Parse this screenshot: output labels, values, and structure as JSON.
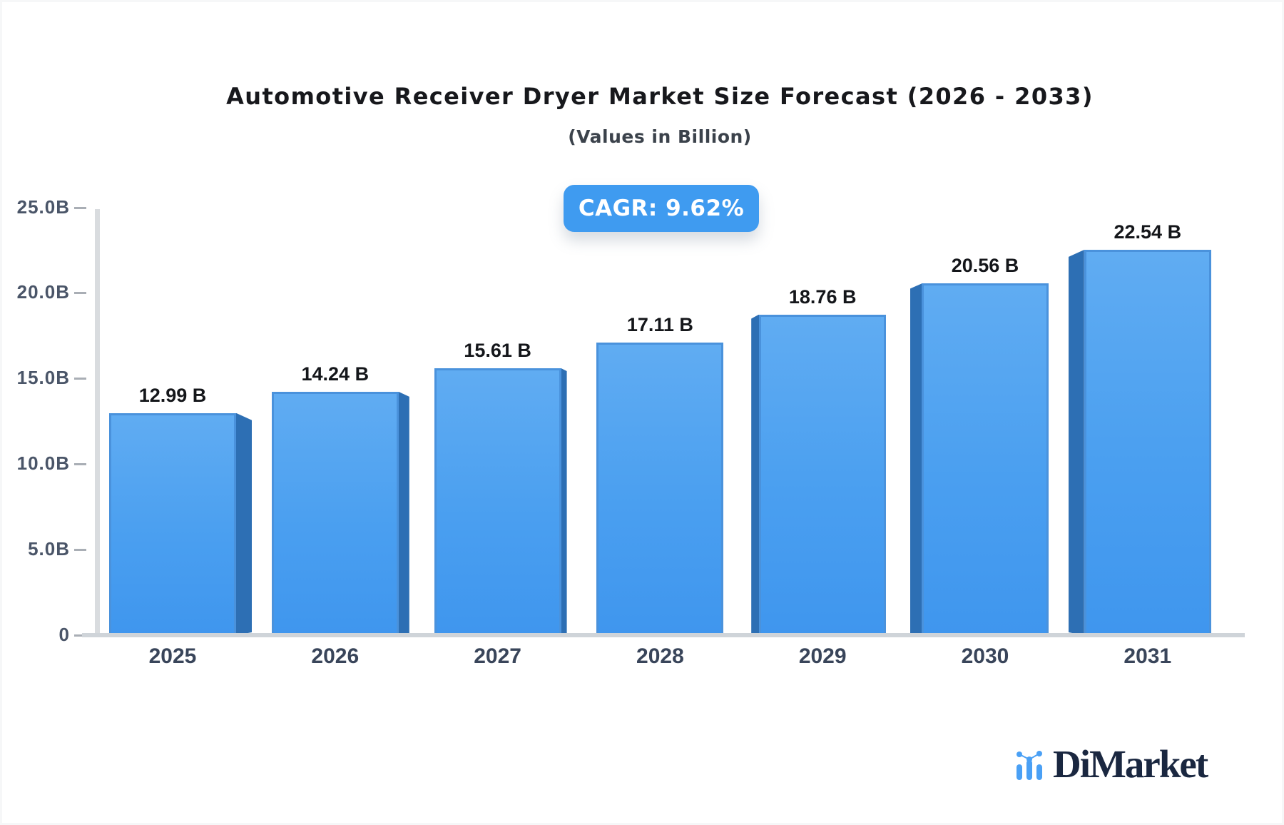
{
  "header": {
    "title": "Automotive Receiver Dryer Market Size Forecast (2026 - 2033)",
    "subtitle": "(Values in Billion)",
    "cagr_badge": "CAGR: 9.62%"
  },
  "chart_data": {
    "type": "bar",
    "categories": [
      "2025",
      "2026",
      "2027",
      "2028",
      "2029",
      "2030",
      "2031"
    ],
    "values": [
      12.99,
      14.24,
      15.61,
      17.11,
      18.76,
      20.56,
      22.54
    ],
    "value_labels": [
      "12.99 B",
      "14.24 B",
      "15.61 B",
      "17.11 B",
      "18.76 B",
      "20.56 B",
      "22.54 B"
    ],
    "title": "Automotive Receiver Dryer Market Size Forecast (2026 - 2033)",
    "subtitle": "(Values in Billion)",
    "xlabel": "",
    "ylabel": "",
    "ylim": [
      0,
      25
    ],
    "yticks": [
      0,
      5,
      10,
      15,
      20,
      25
    ],
    "ytick_labels": [
      "0",
      "5.0B",
      "10.0B",
      "15.0B",
      "20.0B",
      "25.0B"
    ],
    "grid": false,
    "legend": false,
    "bar_color_top": "#60acf2",
    "bar_color_bottom": "#3f96ee",
    "bar_border_color": "#4a92dc",
    "bar_side_color": "#2d6fb4"
  },
  "branding": {
    "logo_text": "DiMarket",
    "logo_icon": "bar-chart-icon",
    "logo_text_color": "#1a2740",
    "logo_icon_color": "#4aa0f5"
  },
  "colors": {
    "badge_bg": "#3f9bf0",
    "axis_line": "#d9dcdf"
  }
}
